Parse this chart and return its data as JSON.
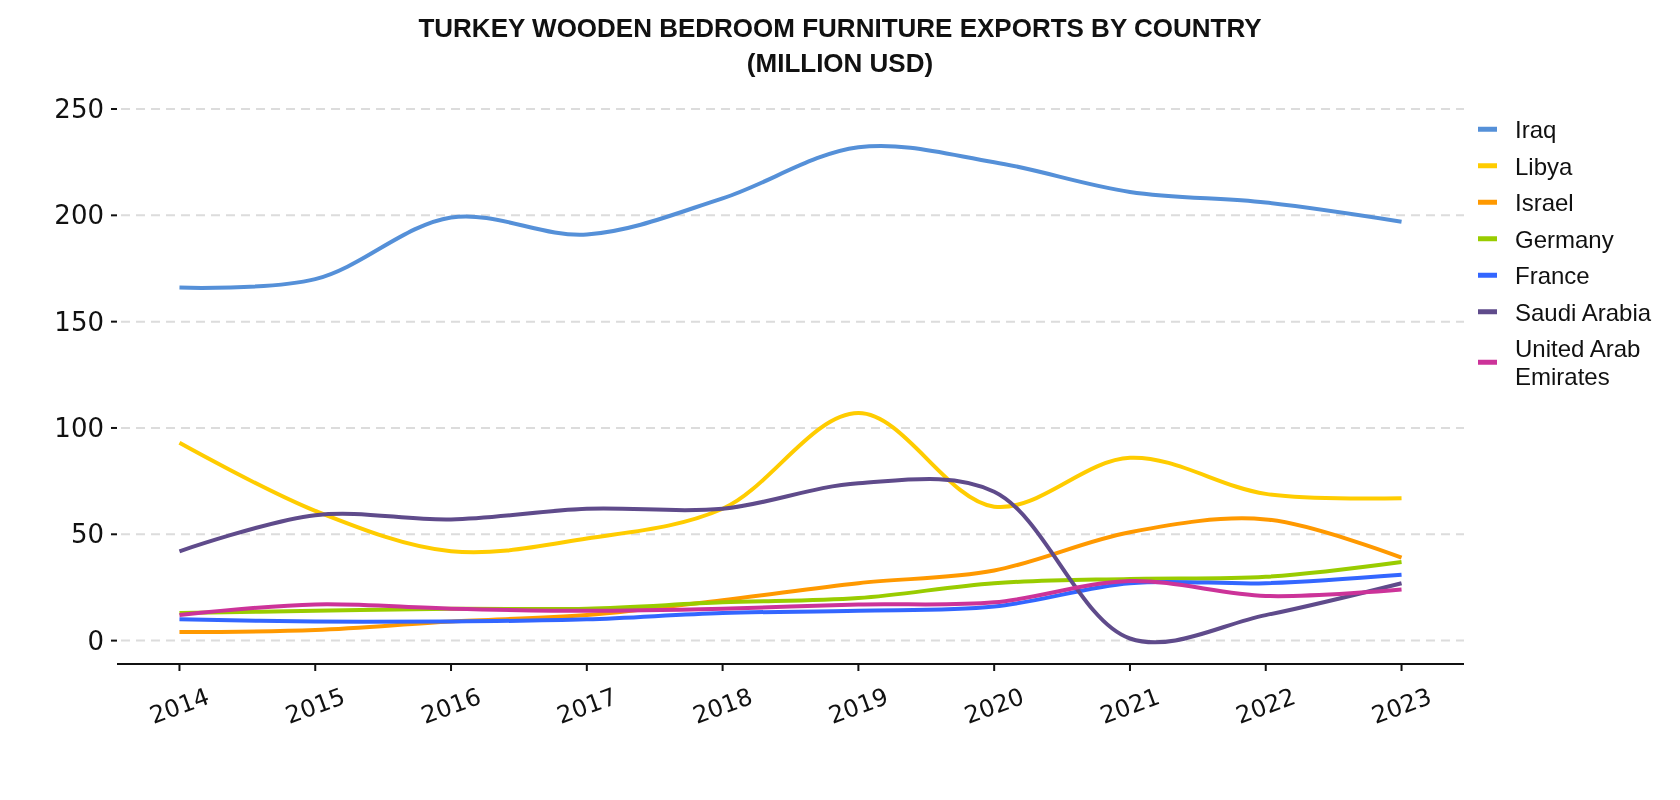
{
  "chart_data": {
    "type": "line",
    "title": "TURKEY WOODEN BEDROOM FURNITURE EXPORTS BY COUNTRY (MILLION USD)",
    "x": [
      2014,
      2015,
      2016,
      2017,
      2018,
      2019,
      2020,
      2021,
      2022,
      2023
    ],
    "xlim": [
      2013.54,
      2023.46
    ],
    "xticks": [
      2014,
      2015,
      2016,
      2017,
      2018,
      2019,
      2020,
      2021,
      2022,
      2023
    ],
    "ylim": [
      -11,
      250
    ],
    "yticks": [
      0,
      50,
      100,
      150,
      200,
      250
    ],
    "grid": "y",
    "legend": "top right",
    "series": [
      {
        "name": "Iraq",
        "color": "#5590d8",
        "values": [
          166,
          170,
          199,
          191,
          208,
          232,
          225,
          211,
          206,
          197
        ]
      },
      {
        "name": "Libya",
        "color": "#ffcc00",
        "values": [
          93,
          61,
          42,
          48,
          62,
          107,
          63,
          86,
          69,
          67
        ]
      },
      {
        "name": "Israel",
        "color": "#ff9900",
        "values": [
          4,
          5,
          9,
          12,
          19,
          27,
          33,
          51,
          57,
          39
        ]
      },
      {
        "name": "Germany",
        "color": "#99cc00",
        "values": [
          13,
          14,
          15,
          15,
          18,
          20,
          27,
          29,
          30,
          37
        ]
      },
      {
        "name": "France",
        "color": "#3366ff",
        "values": [
          10,
          9,
          9,
          10,
          13,
          14,
          16,
          27,
          27,
          31
        ]
      },
      {
        "name": "Saudi Arabia",
        "color": "#5f4b8b",
        "values": [
          42,
          59,
          57,
          62,
          62,
          74,
          70,
          1,
          12,
          27
        ]
      },
      {
        "name": "United Arab Emirates",
        "color": "#cc3399",
        "values": [
          12,
          17,
          15,
          14,
          15,
          17,
          18,
          28,
          21,
          24
        ]
      }
    ]
  }
}
